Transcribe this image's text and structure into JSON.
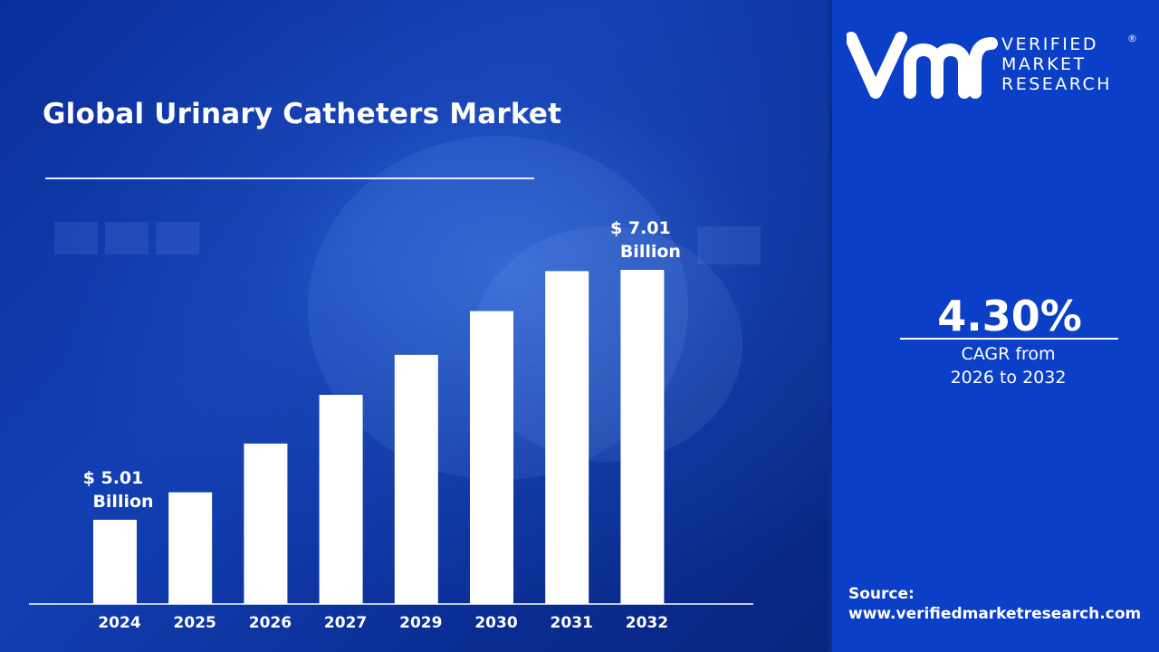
{
  "brand": {
    "line1": "VERIFIED",
    "line2": "MARKET",
    "line3": "RESEARCH",
    "registered": "®"
  },
  "cagr": {
    "value": "4.30%",
    "label_line1": "CAGR from",
    "label_line2": "2026 to 2032"
  },
  "source": {
    "label": "Source:",
    "url": "www.verifiedmarketresearch.com"
  },
  "colors": {
    "bar": "#ffffff",
    "left_background": "#0b2f9a",
    "right_panel": "#0b3fc7"
  },
  "chart_data": {
    "type": "bar",
    "title": "Global Urinary Catheters Market",
    "categories": [
      "2024",
      "2025",
      "2026",
      "2027",
      "2029",
      "2030",
      "2031",
      "2032"
    ],
    "values": [
      5.01,
      5.23,
      5.62,
      6.01,
      6.33,
      6.68,
      7.0,
      7.01
    ],
    "unit": "Billion",
    "annotations": [
      {
        "category": "2024",
        "line1": "$ 5.01",
        "line2": "Billion"
      },
      {
        "category": "2032",
        "line1": "$ 7.01",
        "line2": "Billion"
      }
    ],
    "grid": false,
    "legend": "none"
  }
}
